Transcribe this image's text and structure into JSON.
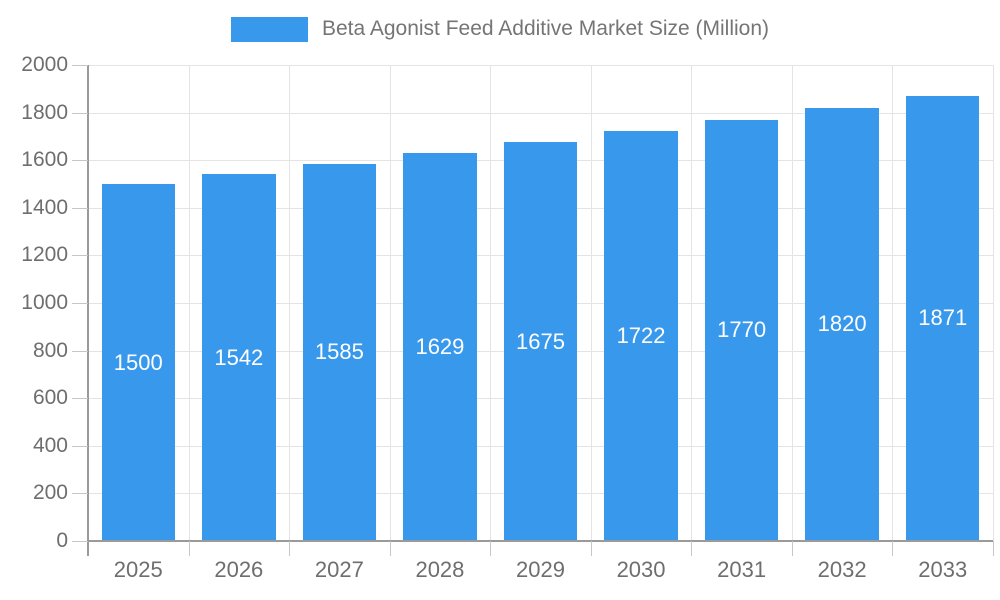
{
  "chart_data": {
    "type": "bar",
    "title": "Beta Agonist Feed Additive Market Size (Million)",
    "categories": [
      "2025",
      "2026",
      "2027",
      "2028",
      "2029",
      "2030",
      "2031",
      "2032",
      "2033"
    ],
    "values": [
      1500,
      1542,
      1585,
      1629,
      1675,
      1722,
      1770,
      1820,
      1871
    ],
    "xlabel": "",
    "ylabel": "",
    "ylim": [
      0,
      2000
    ],
    "ytick_step": 200,
    "grid": true,
    "legend_position": "top-center",
    "bar_labels_inside": true,
    "colors": {
      "bar": "#3898ec",
      "bar_label_text": "#ffffff",
      "grid_line": "#e4e4e4",
      "axis_line": "#9a9a9a",
      "tick_line": "#c6c6c6",
      "axis_text": "#6e6e6e",
      "legend_text": "#757575",
      "background": "#ffffff"
    }
  },
  "legend": {
    "label": "Beta Agonist Feed Additive Market Size (Million)"
  }
}
